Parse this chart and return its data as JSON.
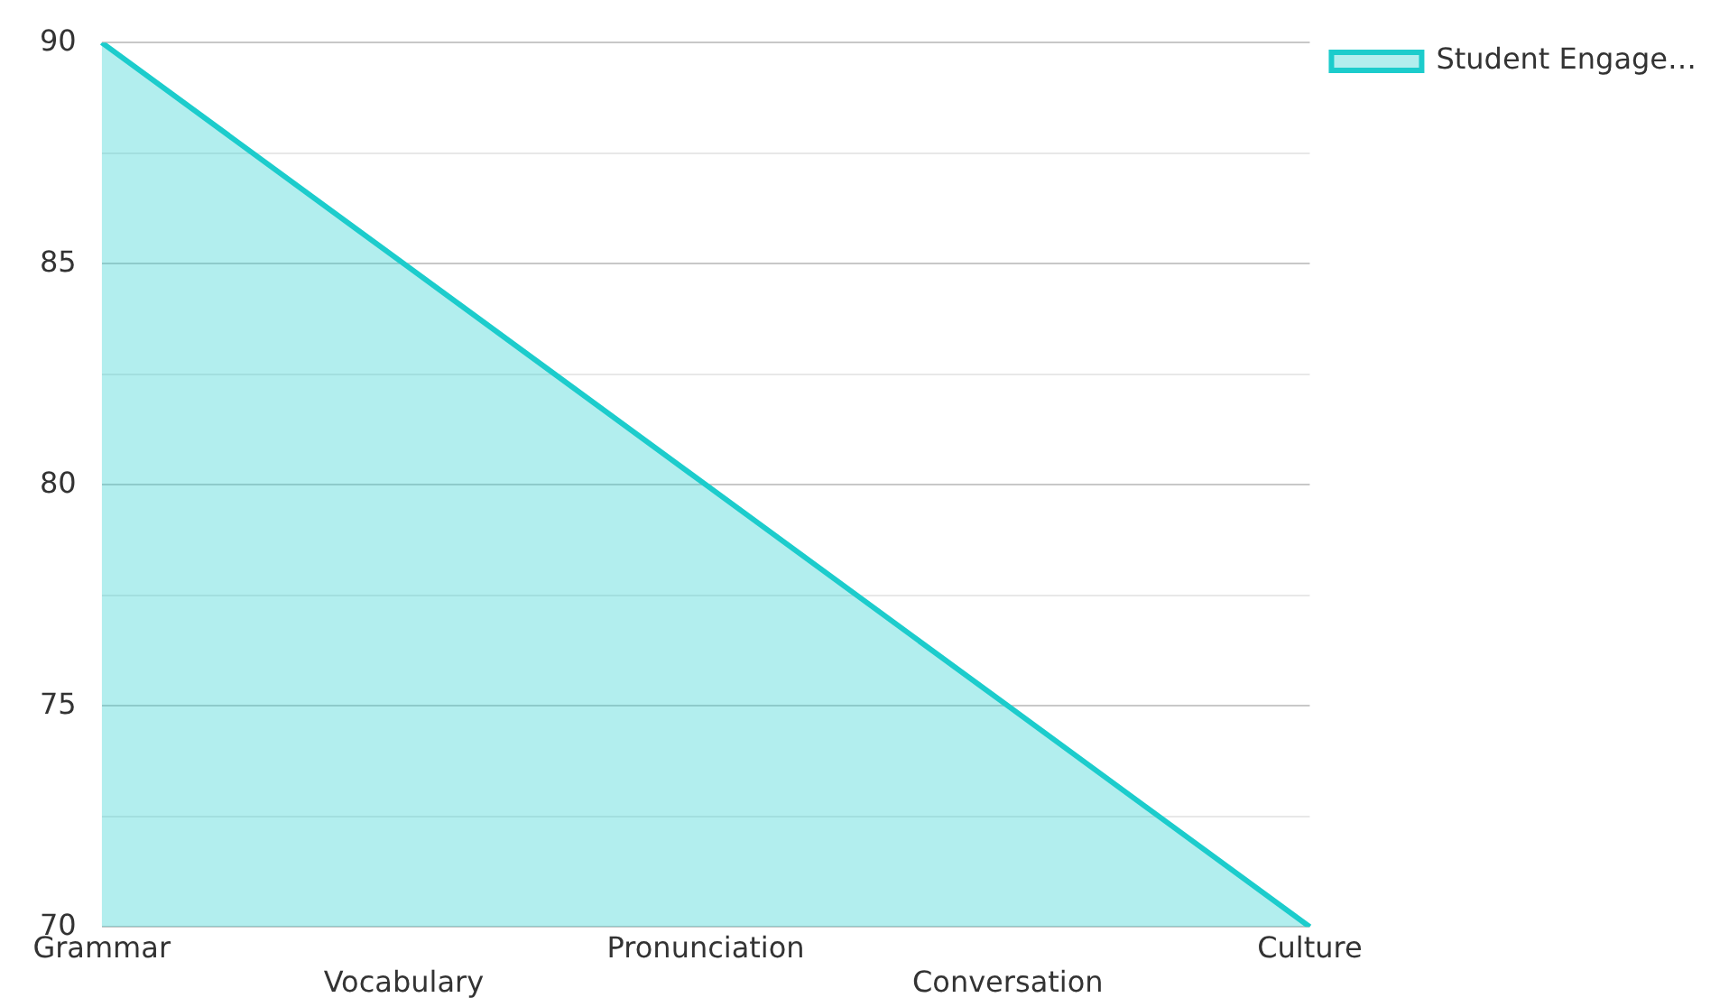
{
  "chart_data": {
    "type": "area",
    "categories": [
      "Grammar",
      "Vocabulary",
      "Pronunciation",
      "Conversation",
      "Culture"
    ],
    "series": [
      {
        "name": "Student Engage…",
        "color": "#1ccccc",
        "values": [
          90,
          85,
          80,
          75,
          70
        ]
      }
    ],
    "ylim": [
      70,
      90
    ],
    "yticks": [
      70,
      {
        "value": 72.5,
        "label": null
      },
      75,
      {
        "value": 77.5,
        "label": null
      },
      80,
      {
        "value": 82.5,
        "label": null
      },
      85,
      {
        "value": 87.5,
        "label": null
      },
      90
    ],
    "grid": "y",
    "legend": "top right"
  }
}
